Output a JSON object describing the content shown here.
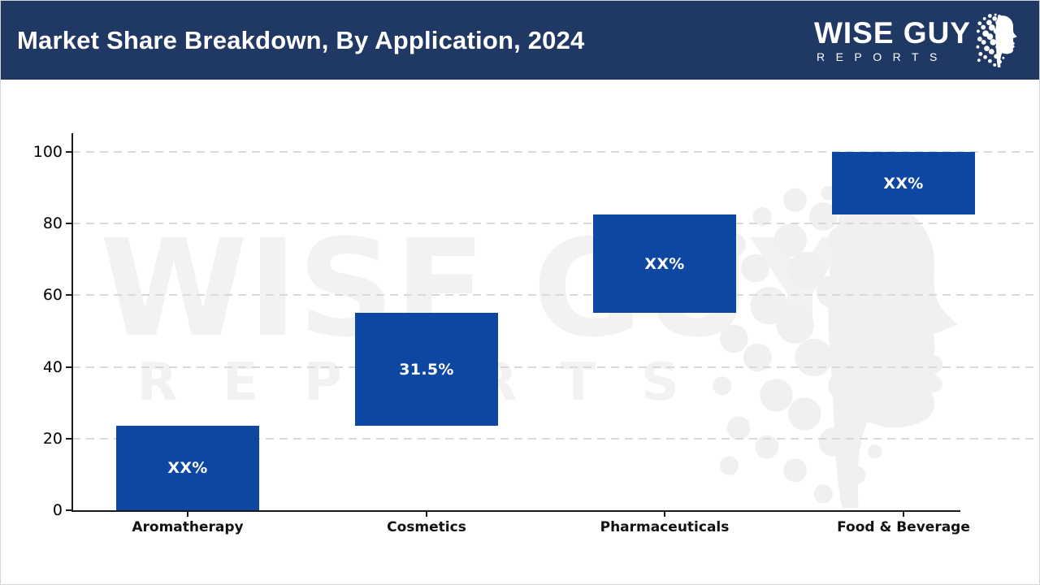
{
  "header": {
    "title": "Market Share Breakdown, By Application, 2024",
    "brand": {
      "line1": "WISE GUY",
      "line2": "REPORTS"
    }
  },
  "watermark": {
    "line1": "WISE GUY",
    "line2": "REPORTS"
  },
  "chart_data": {
    "type": "waterfall_bar",
    "title": "Market Share Breakdown, By Application, 2024",
    "categories": [
      "Aromatherapy",
      "Cosmetics",
      "Pharmaceuticals",
      "Food & Beverage"
    ],
    "segments": [
      {
        "category": "Aromatherapy",
        "start": 0,
        "end": 23.5,
        "label": "XX%"
      },
      {
        "category": "Cosmetics",
        "start": 23.5,
        "end": 55,
        "label": "31.5%"
      },
      {
        "category": "Pharmaceuticals",
        "start": 55,
        "end": 82.5,
        "label": "XX%"
      },
      {
        "category": "Food & Beverage",
        "start": 82.5,
        "end": 100,
        "label": "XX%"
      }
    ],
    "xlabel": "",
    "ylabel": "",
    "ylim": [
      0,
      100
    ],
    "yticks": [
      0,
      20,
      40,
      60,
      80,
      100
    ],
    "grid": "horizontal-dashed",
    "legend": "none",
    "bar_color": "#0d47a1",
    "bar_label_color": "#ffffff"
  },
  "colors": {
    "header_bg": "#203864",
    "bar": "#0d47a1",
    "grid": "#d9d9d9",
    "axis": "#1a1a1a",
    "tick_text": "#000000",
    "watermark": "#f2f2f3",
    "header_text": "#ffffff"
  }
}
